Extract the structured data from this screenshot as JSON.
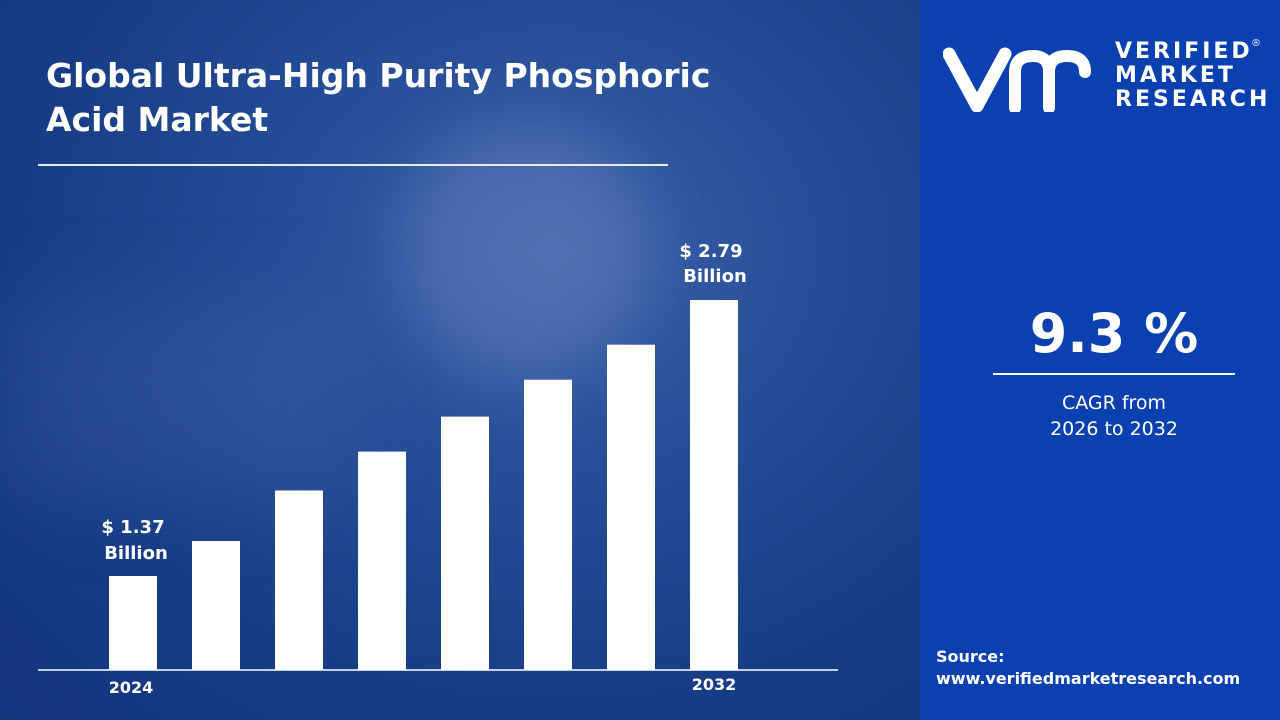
{
  "title": "Global Ultra-High Purity Phosphoric Acid Market",
  "brand": {
    "line1": "VERIFIED",
    "line2": "MARKET",
    "line3": "RESEARCH",
    "registered": "®",
    "logo_letters": "vmr"
  },
  "cagr": {
    "value": "9.3 %",
    "label_line1": "CAGR from",
    "label_line2": "2026 to 2032"
  },
  "source": {
    "label": "Source:",
    "url": "www.verifiedmarketresearch.com"
  },
  "colors": {
    "panel": "#0b40b0",
    "bars": "#ffffff",
    "background": "#1b4190"
  },
  "chart_data": {
    "type": "bar",
    "categories": [
      "2024",
      "",
      "",
      "",
      "",
      "",
      "",
      "2032"
    ],
    "values": [
      1.37,
      1.55,
      1.81,
      2.01,
      2.19,
      2.38,
      2.56,
      2.79
    ],
    "data_labels": [
      {
        "index": 0,
        "line1": "$ 1.37",
        "line2": "Billion"
      },
      {
        "index": 7,
        "line1": "$ 2.79",
        "line2": "Billion"
      }
    ],
    "unit": "USD Billion",
    "ylim": [
      0.89,
      2.79
    ],
    "grid": false,
    "legend": "none"
  }
}
